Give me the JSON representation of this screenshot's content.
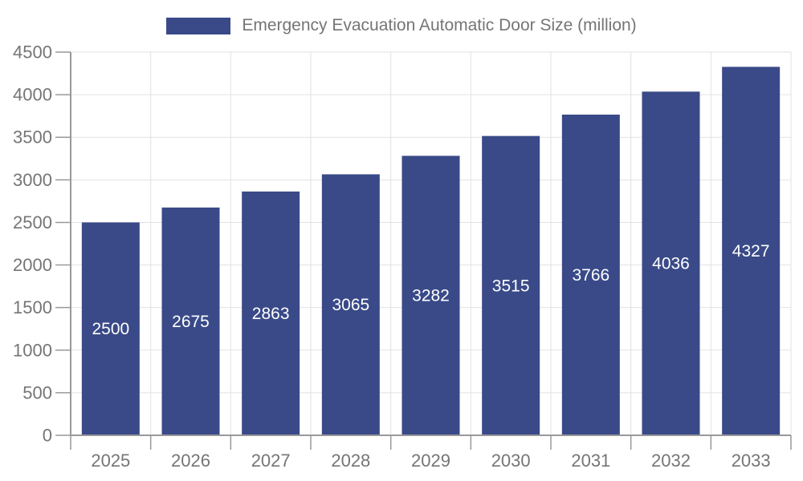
{
  "legend": {
    "label": "Emergency Evacuation Automatic Door Size (million)"
  },
  "colors": {
    "bar": "#3A4A88",
    "grid": "#E2E2E2",
    "axis": "#999999",
    "text": "#757575",
    "bar_label": "#FFFFFF",
    "background": "#FFFFFF"
  },
  "chart_data": {
    "type": "bar",
    "title": "Emergency Evacuation Automatic Door Size (million)",
    "series_name": "Emergency Evacuation Automatic Door Size (million)",
    "categories": [
      "2025",
      "2026",
      "2027",
      "2028",
      "2029",
      "2030",
      "2031",
      "2032",
      "2033"
    ],
    "values": [
      2500,
      2675,
      2863,
      3065,
      3282,
      3515,
      3766,
      4036,
      4327
    ],
    "xlabel": "",
    "ylabel": "",
    "ylim": [
      0,
      4500
    ],
    "ytick_step": 500,
    "yticks": [
      0,
      500,
      1000,
      1500,
      2000,
      2500,
      3000,
      3500,
      4000,
      4500
    ],
    "grid": true,
    "grid_vertical": true,
    "legend_position": "top",
    "bar_value_labels": "inside-center"
  }
}
